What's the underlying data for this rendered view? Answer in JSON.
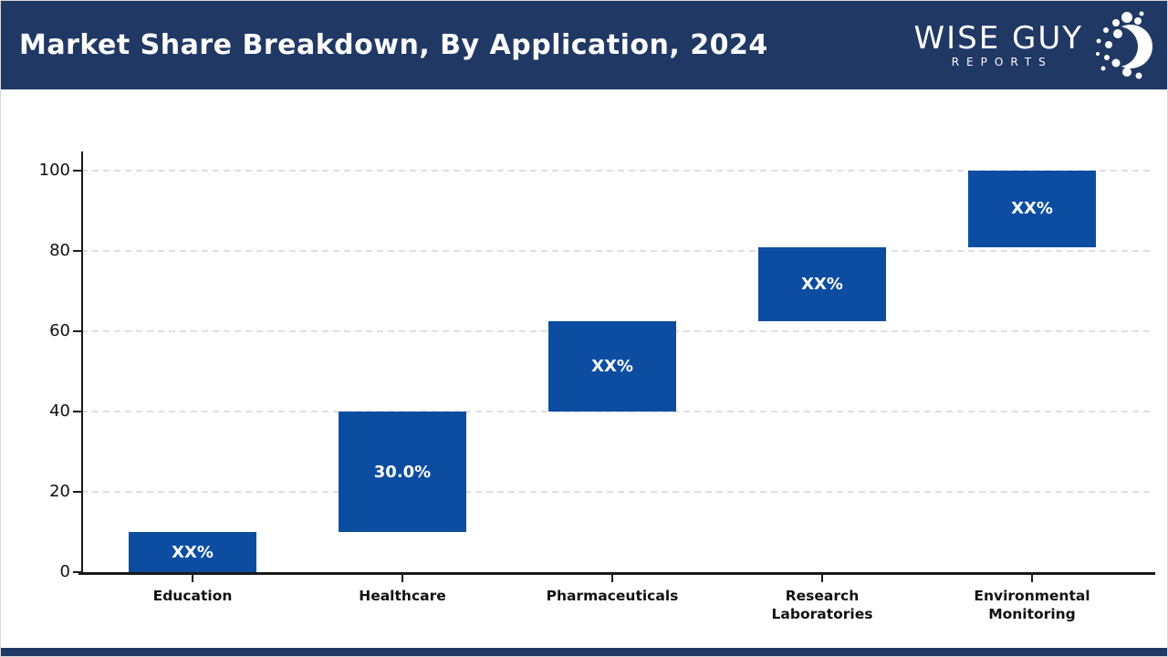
{
  "header": {
    "title": "Market Share Breakdown, By Application, 2024",
    "logo_line1": "WISE GUY",
    "logo_line2": "REPORTS",
    "bg_color": "#203864"
  },
  "watermark": {
    "line1": "WISE GUY",
    "line2": "R E P O R T S"
  },
  "chart_data": {
    "type": "bar",
    "subtype": "waterfall-floating-bars",
    "title": "Market Share Breakdown, By Application, 2024",
    "categories": [
      "Education",
      "Healthcare",
      "Pharmaceuticals",
      "Research Laboratories",
      "Environmental Monitoring"
    ],
    "bar_starts": [
      0,
      10,
      40,
      62.5,
      81
    ],
    "bar_ends": [
      10,
      40,
      62.5,
      81,
      100
    ],
    "bar_labels": [
      "XX%",
      "30.0%",
      "XX%",
      "XX%",
      "XX%"
    ],
    "xlabel": "",
    "ylabel": "",
    "ylim": [
      0,
      105
    ],
    "yticks": [
      0,
      20,
      40,
      60,
      80,
      100
    ],
    "grid": "horizontal dashed",
    "legend": "none",
    "bar_color": "#0c4da2",
    "bar_label_color": "#ffffff"
  }
}
